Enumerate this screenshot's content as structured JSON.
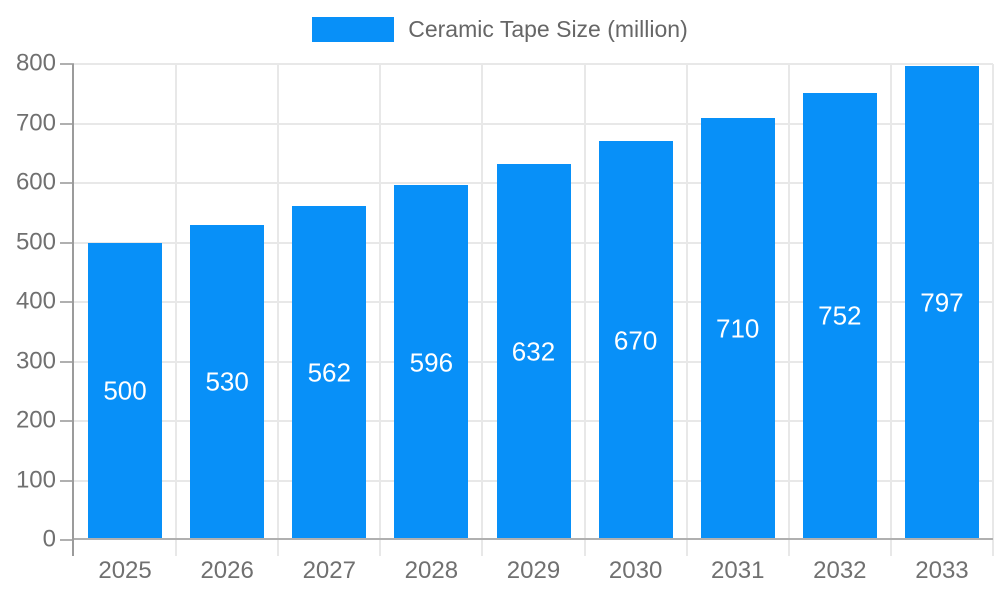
{
  "chart_data": {
    "type": "bar",
    "title": "Ceramic Tape Size (million)",
    "legend": {
      "label": "Ceramic Tape Size (million)",
      "position": "top-center"
    },
    "categories": [
      "2025",
      "2026",
      "2027",
      "2028",
      "2029",
      "2030",
      "2031",
      "2032",
      "2033"
    ],
    "series": [
      {
        "name": "Ceramic Tape Size (million)",
        "values": [
          500,
          530,
          562,
          596,
          632,
          670,
          710,
          752,
          797
        ]
      }
    ],
    "bar_value_labels": [
      "500",
      "530",
      "562",
      "596",
      "632",
      "670",
      "710",
      "752",
      "797"
    ],
    "xlabel": "",
    "ylabel": "",
    "ylim": [
      0,
      800
    ],
    "ytick_step": 100,
    "yticks": [
      "0",
      "100",
      "200",
      "300",
      "400",
      "500",
      "600",
      "700",
      "800"
    ],
    "grid": true,
    "colors": {
      "bar": "#0890F8",
      "bar_label": "#FFFFFF",
      "axis_text": "#707070",
      "legend_text": "#666666",
      "grid_line": "#E8E8E8",
      "axis_line": "#B0B0B0"
    }
  }
}
